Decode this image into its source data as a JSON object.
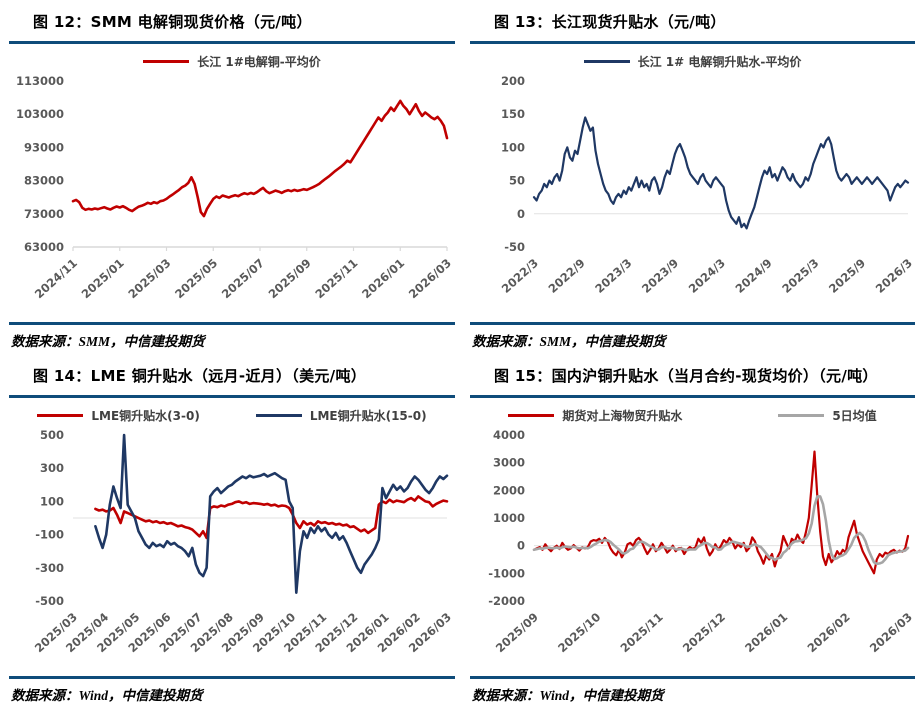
{
  "colors": {
    "red": "#C00000",
    "navy": "#1F3864",
    "gray": "#A6A6A6",
    "rule_blue": "#0E4C7A",
    "grid_line": "#E2E2E2",
    "axis_line": "#D9D9D9",
    "tick_text": "#595959"
  },
  "figures": [
    {
      "title": "图 12：SMM 电解铜现货价格（元/吨）",
      "source": "数据来源：SMM，中信建投期货"
    },
    {
      "title": "图 13：长江现货升贴水（元/吨）",
      "source": "数据来源：SMM，中信建投期货"
    },
    {
      "title": "图 14：LME 铜升贴水（远月-近月）（美元/吨）",
      "source": "数据来源：Wind，中信建投期货"
    },
    {
      "title": "图 15：国内沪铜升贴水（当月合约-现货均价）（元/吨）",
      "source": "数据来源：Wind，中信建投期货"
    }
  ],
  "chart_data": [
    {
      "type": "line",
      "title": "SMM 电解铜现货价格（元/吨）",
      "xlabel": "",
      "ylabel": "",
      "ylim": [
        63000,
        113000
      ],
      "y_ticks": [
        113000,
        103000,
        93000,
        83000,
        73000,
        63000
      ],
      "x_tick_labels": [
        "2024/11",
        "2025/01",
        "2025/03",
        "2025/05",
        "2025/07",
        "2025/09",
        "2025/11",
        "2026/01",
        "2026/03"
      ],
      "legend_position": "top",
      "grid_value": null,
      "axis_line": true,
      "x_start": 0,
      "series": [
        {
          "name": "长江 1#电解铜-平均价",
          "color_key": "red",
          "width": 2.6,
          "values": [
            76800,
            77200,
            76500,
            74800,
            74200,
            74500,
            74300,
            74600,
            74400,
            74700,
            75000,
            74600,
            74300,
            74800,
            75200,
            74900,
            75300,
            74800,
            74200,
            73800,
            74500,
            75100,
            75400,
            75800,
            76300,
            76000,
            76500,
            76200,
            76800,
            77000,
            77500,
            78200,
            78800,
            79500,
            80200,
            81000,
            81500,
            82300,
            84000,
            82000,
            78000,
            73500,
            72300,
            74500,
            76000,
            77500,
            78200,
            77800,
            78500,
            78200,
            77900,
            78300,
            78600,
            78300,
            78800,
            79200,
            78900,
            79300,
            79000,
            79500,
            80200,
            80800,
            79800,
            79200,
            79600,
            80000,
            79700,
            79300,
            79800,
            80100,
            79800,
            80200,
            79900,
            80100,
            80400,
            80200,
            80600,
            81000,
            81500,
            82000,
            82800,
            83500,
            84200,
            85000,
            85800,
            86500,
            87200,
            88000,
            89000,
            88500,
            90000,
            91500,
            93000,
            94500,
            96000,
            97500,
            99000,
            100500,
            102000,
            101000,
            102500,
            103500,
            105000,
            104000,
            105500,
            107000,
            105500,
            104500,
            103000,
            104500,
            106000,
            104000,
            102500,
            103500,
            102800,
            102000,
            101500,
            102200,
            101000,
            99500,
            95800
          ]
        }
      ]
    },
    {
      "type": "line",
      "title": "长江现货升贴水（元/吨）",
      "xlabel": "",
      "ylabel": "",
      "ylim": [
        -50,
        200
      ],
      "y_ticks": [
        200,
        150,
        100,
        50,
        0,
        -50
      ],
      "x_tick_labels": [
        "2022/3",
        "2022/9",
        "2023/3",
        "2023/9",
        "2024/3",
        "2024/9",
        "2025/3",
        "2025/9",
        "2026/3"
      ],
      "legend_position": "top",
      "grid_value": 0,
      "axis_line": false,
      "x_start": 0,
      "series": [
        {
          "name": "长江 1# 电解铜升贴水-平均价",
          "color_key": "navy",
          "width": 2.2,
          "values": [
            25,
            20,
            30,
            35,
            45,
            40,
            50,
            45,
            55,
            60,
            50,
            65,
            90,
            100,
            85,
            80,
            95,
            90,
            110,
            130,
            145,
            135,
            125,
            130,
            95,
            75,
            60,
            45,
            35,
            30,
            20,
            15,
            25,
            30,
            25,
            35,
            30,
            40,
            35,
            45,
            55,
            40,
            50,
            40,
            45,
            35,
            50,
            55,
            45,
            30,
            40,
            55,
            65,
            60,
            75,
            90,
            100,
            105,
            95,
            85,
            70,
            60,
            55,
            50,
            45,
            55,
            60,
            50,
            45,
            40,
            50,
            55,
            50,
            45,
            40,
            20,
            5,
            -5,
            -10,
            -15,
            -5,
            -20,
            -15,
            -22,
            -10,
            0,
            10,
            25,
            40,
            55,
            65,
            60,
            70,
            55,
            60,
            50,
            60,
            70,
            65,
            55,
            50,
            60,
            50,
            45,
            40,
            45,
            55,
            50,
            60,
            75,
            85,
            95,
            105,
            100,
            110,
            115,
            105,
            85,
            65,
            55,
            50,
            55,
            60,
            55,
            45,
            50,
            55,
            50,
            45,
            50,
            55,
            50,
            45,
            50,
            55,
            50,
            45,
            40,
            35,
            20,
            30,
            40,
            45,
            40,
            45,
            50,
            47
          ]
        }
      ]
    },
    {
      "type": "line",
      "title": "LME 铜升贴水（远月-近月）（美元/吨）",
      "xlabel": "",
      "ylabel": "",
      "ylim": [
        -500,
        500
      ],
      "y_ticks": [
        500,
        300,
        100,
        -100,
        -300,
        -500
      ],
      "x_tick_labels": [
        "2025/03",
        "2025/04",
        "2025/05",
        "2025/06",
        "2025/07",
        "2025/08",
        "2025/09",
        "2025/10",
        "2025/11",
        "2025/12",
        "2026/01",
        "2026/02",
        "2026/03"
      ],
      "legend_position": "top",
      "grid_value": 0,
      "axis_line": false,
      "x_start": 0.06,
      "series": [
        {
          "name": "LME铜升贴水(3-0)",
          "color_key": "red",
          "width": 2.6,
          "values": [
            55,
            45,
            50,
            40,
            45,
            60,
            20,
            -30,
            40,
            30,
            20,
            10,
            0,
            -10,
            -20,
            -15,
            -25,
            -20,
            -30,
            -25,
            -35,
            -30,
            -40,
            -50,
            -45,
            -55,
            -60,
            -70,
            -90,
            -110,
            -80,
            -120,
            60,
            70,
            65,
            75,
            70,
            80,
            85,
            95,
            100,
            90,
            95,
            85,
            90,
            88,
            85,
            80,
            85,
            75,
            80,
            70,
            75,
            72,
            60,
            20,
            -30,
            -60,
            -20,
            -40,
            -30,
            -45,
            -20,
            -30,
            -25,
            -35,
            -30,
            -40,
            -35,
            -45,
            -40,
            -55,
            -50,
            -65,
            -80,
            -70,
            -90,
            -75,
            -60,
            80,
            100,
            90,
            110,
            95,
            105,
            100,
            95,
            110,
            120,
            105,
            130,
            115,
            100,
            95,
            70,
            85,
            95,
            105,
            100
          ]
        },
        {
          "name": "LME铜升贴水(15-0)",
          "color_key": "navy",
          "width": 2.6,
          "values": [
            -50,
            -120,
            -180,
            -100,
            80,
            190,
            120,
            60,
            500,
            80,
            40,
            0,
            -80,
            -120,
            -160,
            -180,
            -150,
            -170,
            -160,
            -175,
            -140,
            -160,
            -150,
            -170,
            -180,
            -200,
            -230,
            -180,
            -280,
            -330,
            -350,
            -300,
            130,
            160,
            180,
            150,
            170,
            190,
            200,
            220,
            235,
            250,
            240,
            255,
            245,
            250,
            255,
            265,
            250,
            260,
            270,
            255,
            240,
            230,
            100,
            60,
            -450,
            -200,
            -80,
            -120,
            -60,
            -90,
            -50,
            -80,
            -60,
            -100,
            -120,
            -90,
            -130,
            -110,
            -150,
            -200,
            -250,
            -300,
            -330,
            -280,
            -250,
            -220,
            -180,
            -130,
            180,
            120,
            160,
            200,
            170,
            190,
            160,
            180,
            220,
            250,
            230,
            200,
            170,
            150,
            180,
            220,
            250,
            235,
            255
          ]
        }
      ]
    },
    {
      "type": "line",
      "title": "国内沪铜升贴水（当月合约-现货均价）（元/吨）",
      "xlabel": "",
      "ylabel": "",
      "ylim": [
        -2000,
        4000
      ],
      "y_ticks": [
        4000,
        3000,
        2000,
        1000,
        0,
        -1000,
        -2000
      ],
      "x_tick_labels": [
        "2025/09",
        "2025/10",
        "2025/11",
        "2025/12",
        "2026/01",
        "2026/02",
        "2026/03"
      ],
      "legend_position": "top",
      "grid_value": 0,
      "axis_line": false,
      "x_start": 0,
      "legend_gap": 96,
      "series": [
        {
          "name": "期货对上海物贸升贴水",
          "color_key": "red",
          "width": 2.2,
          "values": [
            -150,
            -100,
            -50,
            -150,
            50,
            -100,
            -200,
            -80,
            0,
            -120,
            100,
            -50,
            -150,
            -100,
            20,
            -80,
            -180,
            -60,
            -100,
            -50,
            150,
            200,
            180,
            250,
            100,
            280,
            150,
            -100,
            -250,
            -350,
            -150,
            -420,
            -250,
            50,
            100,
            0,
            200,
            280,
            150,
            -100,
            -300,
            -150,
            50,
            -200,
            -100,
            100,
            -50,
            -250,
            -150,
            0,
            -200,
            -100,
            -80,
            -300,
            -150,
            -50,
            -120,
            -60,
            250,
            100,
            300,
            -100,
            -350,
            -200,
            50,
            -150,
            0,
            200,
            100,
            280,
            150,
            -100,
            50,
            -50,
            100,
            -200,
            -80,
            300,
            150,
            -200,
            -400,
            -650,
            -350,
            -500,
            -300,
            -750,
            -400,
            -200,
            350,
            100,
            -100,
            250,
            150,
            400,
            200,
            100,
            500,
            1000,
            2200,
            3400,
            1800,
            500,
            -400,
            -700,
            -300,
            -600,
            -450,
            -200,
            -350,
            -150,
            -250,
            300,
            600,
            900,
            400,
            100,
            -200,
            -400,
            -600,
            -800,
            -1000,
            -500,
            -300,
            -400,
            -250,
            -300,
            -200,
            -150,
            -250,
            -180,
            -220,
            -100,
            350
          ]
        },
        {
          "name": "5日均值",
          "color_key": "gray",
          "width": 2.6,
          "ma_of": 0,
          "window": 5
        }
      ]
    }
  ]
}
